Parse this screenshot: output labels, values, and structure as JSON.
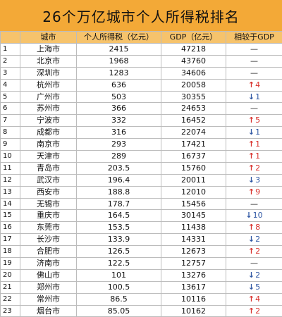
{
  "title": "26个万亿城市个人所得税排名",
  "columns": [
    "",
    "城市",
    "个人所得税（亿元）",
    "GDP（亿元）",
    "相较于GDP"
  ],
  "rows": [
    {
      "rank": "1",
      "city": "上海市",
      "tax": "2415",
      "gdp": "47218",
      "change": "—",
      "dir": "flat"
    },
    {
      "rank": "2",
      "city": "北京市",
      "tax": "1968",
      "gdp": "43760",
      "change": "—",
      "dir": "flat"
    },
    {
      "rank": "3",
      "city": "深圳市",
      "tax": "1283",
      "gdp": "34606",
      "change": "—",
      "dir": "flat"
    },
    {
      "rank": "4",
      "city": "杭州市",
      "tax": "636",
      "gdp": "20058",
      "change": "4",
      "dir": "up"
    },
    {
      "rank": "5",
      "city": "广州市",
      "tax": "503",
      "gdp": "30355",
      "change": "1",
      "dir": "down"
    },
    {
      "rank": "6",
      "city": "苏州市",
      "tax": "366",
      "gdp": "24653",
      "change": "—",
      "dir": "flat"
    },
    {
      "rank": "7",
      "city": "宁波市",
      "tax": "332",
      "gdp": "16452",
      "change": "5",
      "dir": "up"
    },
    {
      "rank": "8",
      "city": "成都市",
      "tax": "316",
      "gdp": "22074",
      "change": "1",
      "dir": "down"
    },
    {
      "rank": "9",
      "city": "南京市",
      "tax": "293",
      "gdp": "17421",
      "change": "1",
      "dir": "up"
    },
    {
      "rank": "10",
      "city": "天津市",
      "tax": "289",
      "gdp": "16737",
      "change": "1",
      "dir": "up"
    },
    {
      "rank": "11",
      "city": "青岛市",
      "tax": "203.5",
      "gdp": "15760",
      "change": "2",
      "dir": "up"
    },
    {
      "rank": "12",
      "city": "武汉市",
      "tax": "196.4",
      "gdp": "20011",
      "change": "3",
      "dir": "down"
    },
    {
      "rank": "13",
      "city": "西安市",
      "tax": "188.8",
      "gdp": "12010",
      "change": "9",
      "dir": "up"
    },
    {
      "rank": "14",
      "city": "无锡市",
      "tax": "178.7",
      "gdp": "15456",
      "change": "—",
      "dir": "flat"
    },
    {
      "rank": "15",
      "city": "重庆市",
      "tax": "164.5",
      "gdp": "30145",
      "change": "10",
      "dir": "down"
    },
    {
      "rank": "16",
      "city": "东莞市",
      "tax": "153.5",
      "gdp": "11438",
      "change": "8",
      "dir": "up"
    },
    {
      "rank": "17",
      "city": "长沙市",
      "tax": "133.9",
      "gdp": "14331",
      "change": "2",
      "dir": "down"
    },
    {
      "rank": "18",
      "city": "合肥市",
      "tax": "126.5",
      "gdp": "12673",
      "change": "2",
      "dir": "up"
    },
    {
      "rank": "19",
      "city": "济南市",
      "tax": "122.5",
      "gdp": "12757",
      "change": "—",
      "dir": "flat"
    },
    {
      "rank": "20",
      "city": "佛山市",
      "tax": "101",
      "gdp": "13276",
      "change": "2",
      "dir": "down"
    },
    {
      "rank": "21",
      "city": "郑州市",
      "tax": "100.5",
      "gdp": "13617",
      "change": "5",
      "dir": "down"
    },
    {
      "rank": "22",
      "city": "常州市",
      "tax": "86.5",
      "gdp": "10116",
      "change": "4",
      "dir": "up"
    },
    {
      "rank": "23",
      "city": "烟台市",
      "tax": "85.05",
      "gdp": "10162",
      "change": "2",
      "dir": "up"
    }
  ]
}
